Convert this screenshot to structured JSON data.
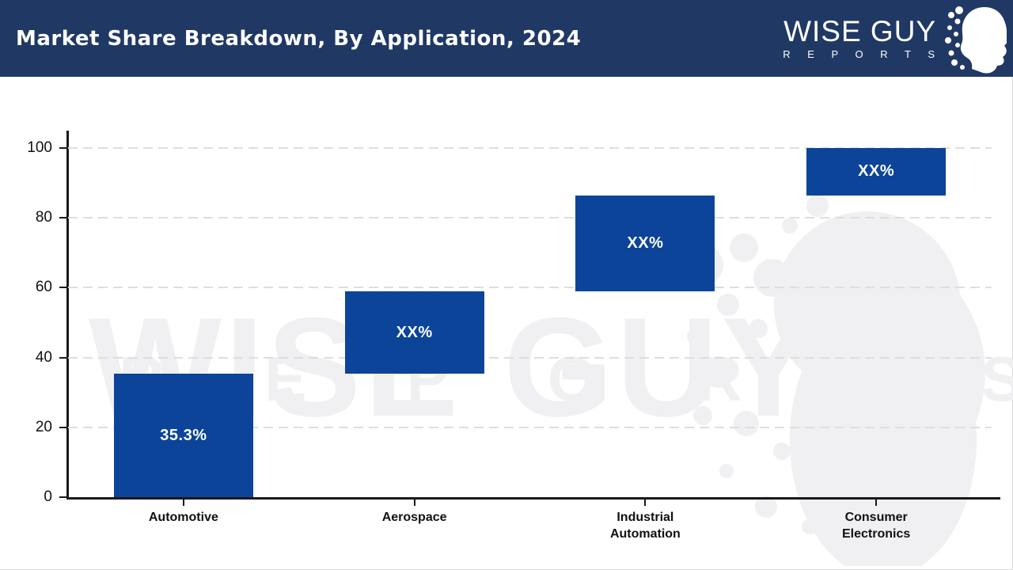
{
  "header": {
    "title": "Market Share Breakdown, By Application, 2024",
    "logo": {
      "line1": "WISE GUY",
      "line2": "R E P O R T S"
    }
  },
  "watermark": {
    "line1": "WISE GUY",
    "line2": "R E P O R T S"
  },
  "colors": {
    "header_bg": "#203864",
    "title_text": "#FFFFFF",
    "bar": "#0B4499",
    "bar_label": "#FFFFFF",
    "grid": "#DEDEDE",
    "axis": "#1A1A1A",
    "tick_text": "#111111",
    "watermark": "#F0F0F3",
    "edge_line": "#D9D9D9"
  },
  "chart_data": {
    "type": "bar",
    "subtype": "waterfall",
    "title": "Market Share Breakdown, By Application, 2024",
    "categories": [
      "Automotive",
      "Aerospace",
      "Industrial Automation",
      "Consumer Electronics"
    ],
    "segments": [
      {
        "category": "Automotive",
        "start": 0,
        "end": 35.3,
        "value_label": "35.3%"
      },
      {
        "category": "Aerospace",
        "start": 35.3,
        "end": 58.9,
        "value_label": "XX%"
      },
      {
        "category": "Industrial Automation",
        "start": 58.9,
        "end": 86.5,
        "value_label": "XX%"
      },
      {
        "category": "Consumer Electronics",
        "start": 86.5,
        "end": 100,
        "value_label": "XX%"
      }
    ],
    "xlabel": "",
    "ylabel": "",
    "ylim": [
      0,
      100
    ],
    "yticks": [
      0,
      20,
      40,
      60,
      80,
      100
    ],
    "grid": "horizontal-dashed",
    "legend": "none"
  }
}
